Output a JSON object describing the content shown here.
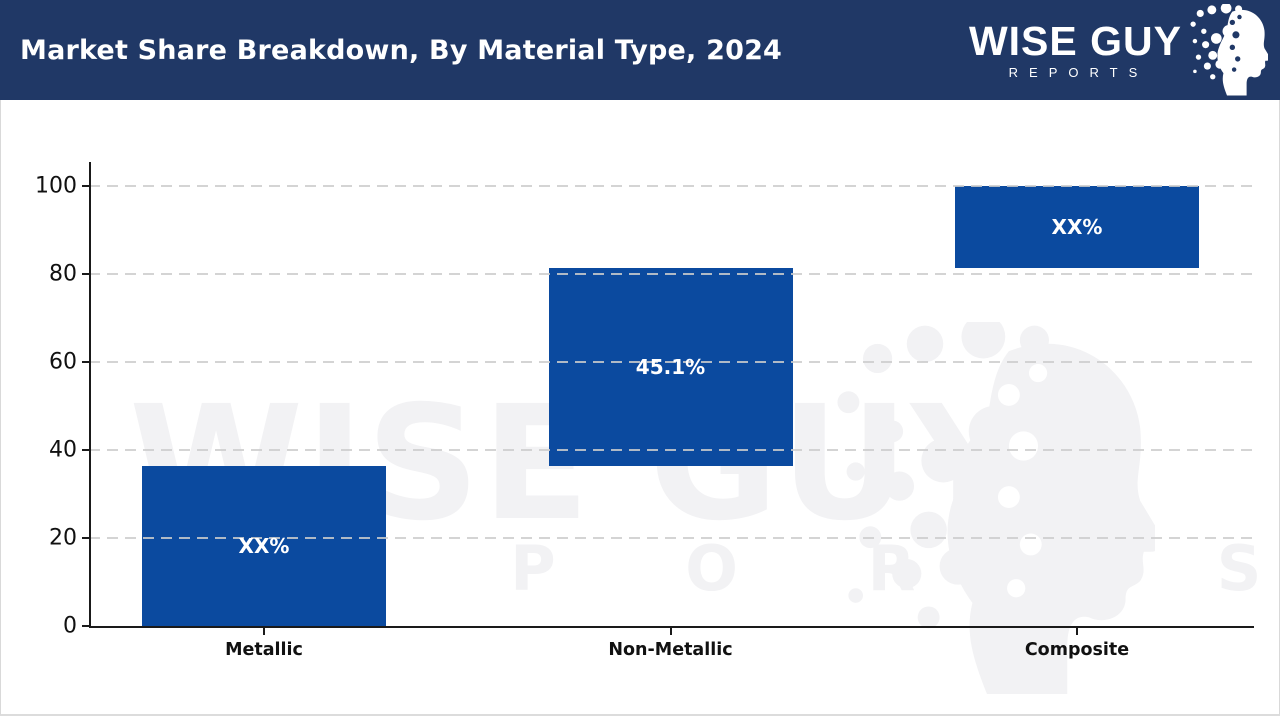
{
  "header": {
    "title": "Market Share Breakdown, By Material Type, 2024",
    "bg_color": "#203866",
    "logo": {
      "line1": "WISE GUY",
      "line2": "REPORTS"
    }
  },
  "watermark": {
    "line1": "WISE GUY",
    "line2": "REPORTS",
    "color": "#f2f2f4"
  },
  "chart_data": {
    "type": "bar",
    "subtype": "waterfall",
    "title": "",
    "xlabel": "",
    "ylabel": "",
    "categories": [
      "Metallic",
      "Non-Metallic",
      "Composite"
    ],
    "segments": [
      {
        "category": "Metallic",
        "start": 0,
        "end": 36.3,
        "value_label": "XX%"
      },
      {
        "category": "Non-Metallic",
        "start": 36.3,
        "end": 81.4,
        "value_label": "45.1%"
      },
      {
        "category": "Composite",
        "start": 81.4,
        "end": 100,
        "value_label": "XX%"
      }
    ],
    "ylim": [
      0,
      100
    ],
    "yticks": [
      0,
      20,
      40,
      60,
      80,
      100
    ],
    "grid": "horizontal-dashed",
    "legend": "none",
    "bar_color": "#0b4a9f",
    "value_label_color": "#ffffff",
    "axis_color": "#1a1a1a"
  }
}
